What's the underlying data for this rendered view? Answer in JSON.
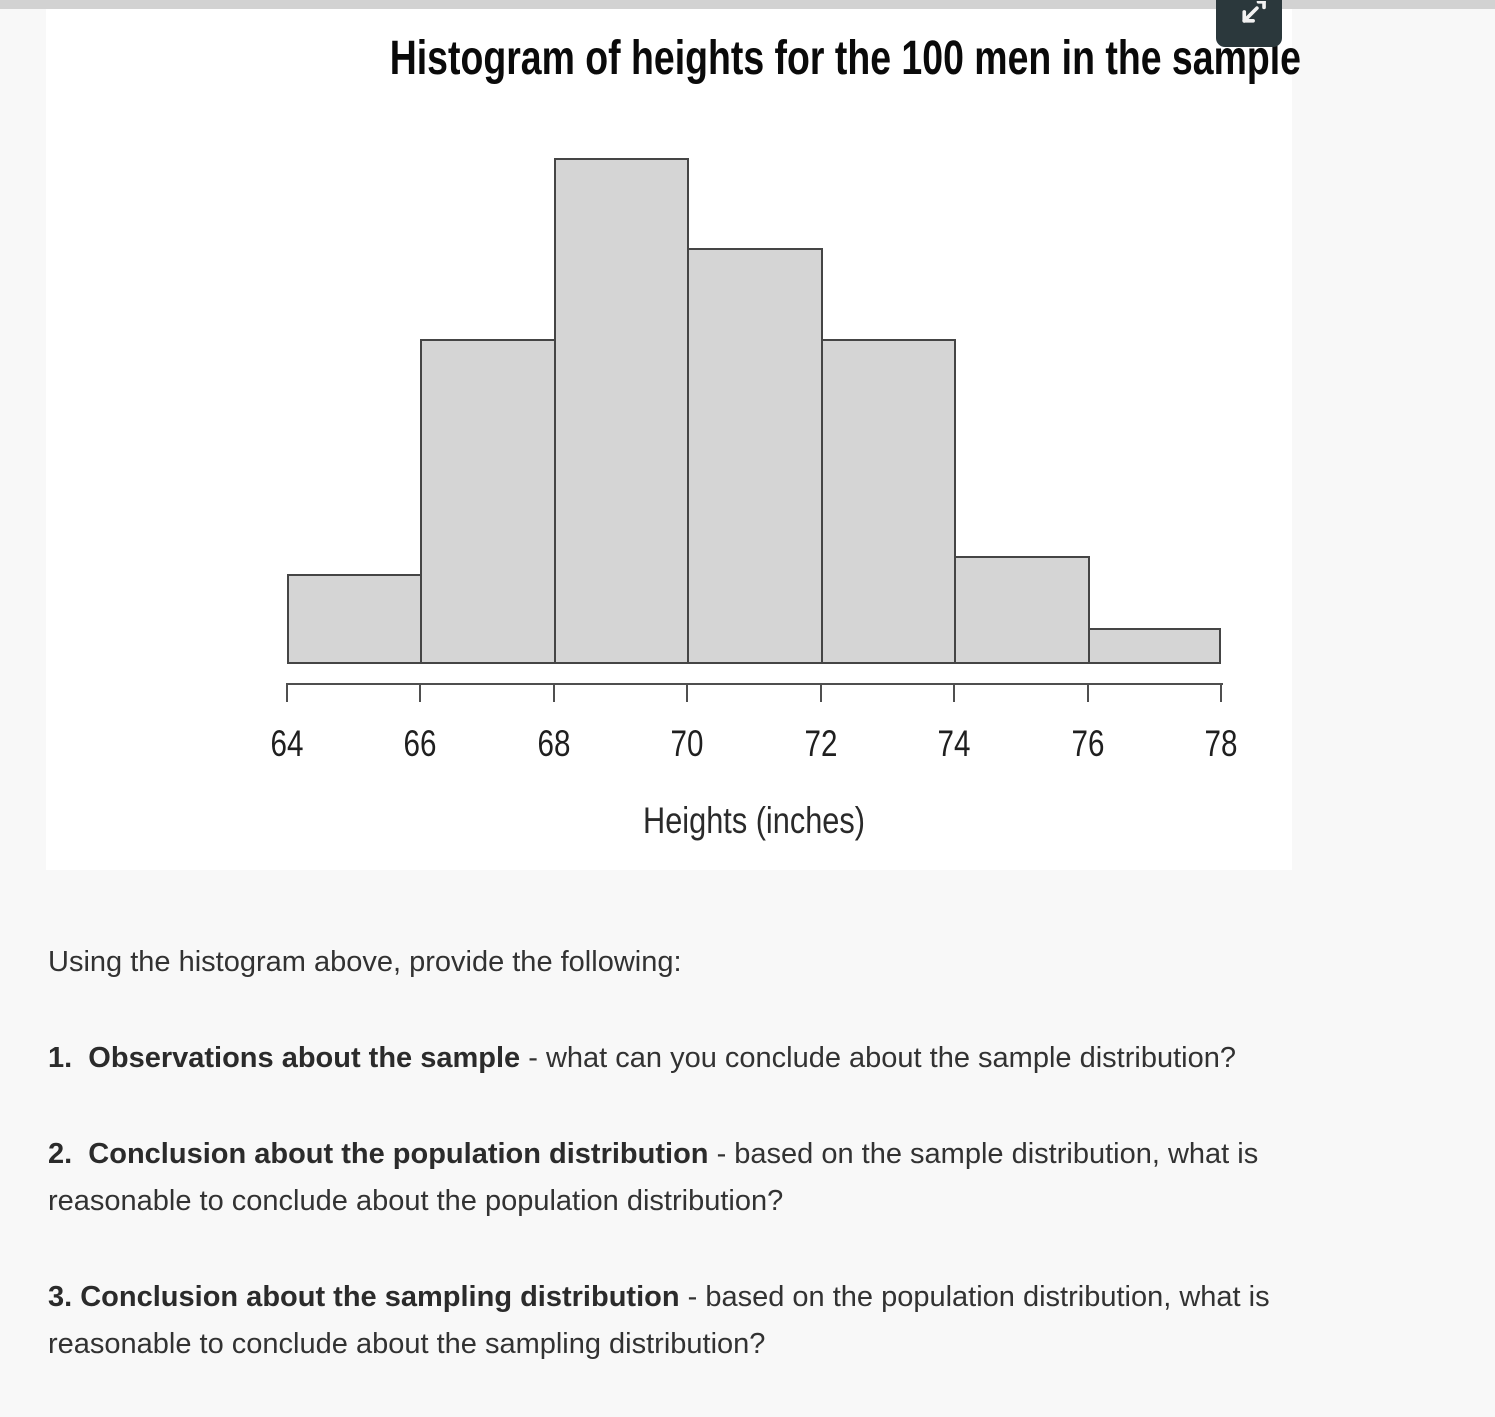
{
  "chart_data": {
    "type": "bar",
    "subtype": "histogram",
    "title": "Histogram of heights for the 100 men in the sample",
    "xlabel": "Heights (inches)",
    "ylabel": "",
    "bin_edges": [
      64,
      66,
      68,
      70,
      72,
      74,
      76,
      78
    ],
    "x_tick_labels": [
      "64",
      "66",
      "68",
      "70",
      "72",
      "74",
      "76",
      "78"
    ],
    "values": [
      5,
      18,
      28,
      23,
      18,
      6,
      2
    ],
    "total_n": 100,
    "ylim": [
      0,
      28
    ],
    "grid": false,
    "legend": false,
    "bar_fill_color": "#d5d5d5",
    "bar_border_color": "#454545"
  },
  "toolbar": {
    "collapse_button_icon": "arrow-collapse-down-left",
    "collapse_button_color": "#2b383c"
  },
  "questions": {
    "intro": "Using the histogram above, provide the following:",
    "items": [
      {
        "bold": "1.  Observations about the sample",
        "normal_line1": " - what can you conclude about the sample distribution?",
        "normal_line2": ""
      },
      {
        "bold": "2.  Conclusion about the population distribution",
        "normal_line1": " - based on the sample distribution, what is",
        "normal_line2": "reasonable to conclude about the population distribution?"
      },
      {
        "bold": "3. Conclusion about the sampling distribution",
        "normal_line1": " - based on the population distribution, what is",
        "normal_line2": "reasonable to conclude about the sampling distribution?"
      }
    ]
  },
  "colors": {
    "page_background": "#f8f8f8",
    "card_background": "#ffffff",
    "top_strip": "#d2d2d2",
    "text": "#323232",
    "axis": "#4f4f4f"
  }
}
